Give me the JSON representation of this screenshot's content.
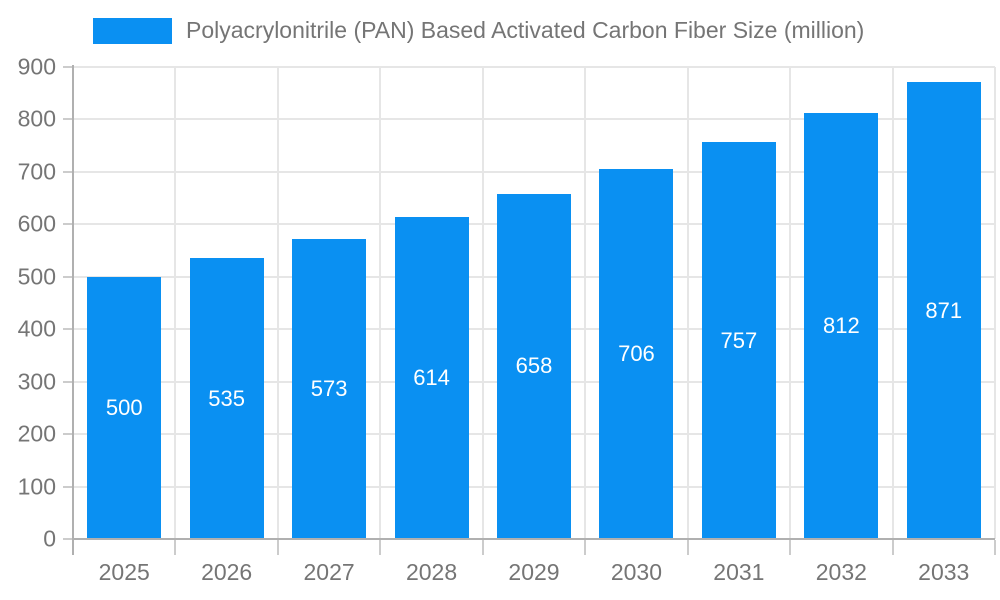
{
  "legend": {
    "label": "Polyacrylonitrile (PAN) Based Activated Carbon Fiber Size (million)"
  },
  "colors": {
    "bar": "#0a90f2",
    "axis_line": "#b0b0b0",
    "grid_line": "#e6e6e6",
    "tick": "#cccccc",
    "label_text": "#757575",
    "bar_label_text": "#ffffff",
    "background": "#ffffff"
  },
  "chart_data": {
    "type": "bar",
    "title": "Polyacrylonitrile (PAN) Based Activated Carbon Fiber Size (million)",
    "categories": [
      "2025",
      "2026",
      "2027",
      "2028",
      "2029",
      "2030",
      "2031",
      "2032",
      "2033"
    ],
    "series": [
      {
        "name": "Polyacrylonitrile (PAN) Based Activated Carbon Fiber Size (million)",
        "values": [
          500,
          535,
          573,
          614,
          658,
          706,
          757,
          812,
          871
        ]
      }
    ],
    "xlabel": "",
    "ylabel": "",
    "ylim": [
      0,
      900
    ],
    "yticks": [
      0,
      100,
      200,
      300,
      400,
      500,
      600,
      700,
      800,
      900
    ],
    "grid": true,
    "legend_position": "top-left",
    "bar_labels": "inside-center-white"
  }
}
